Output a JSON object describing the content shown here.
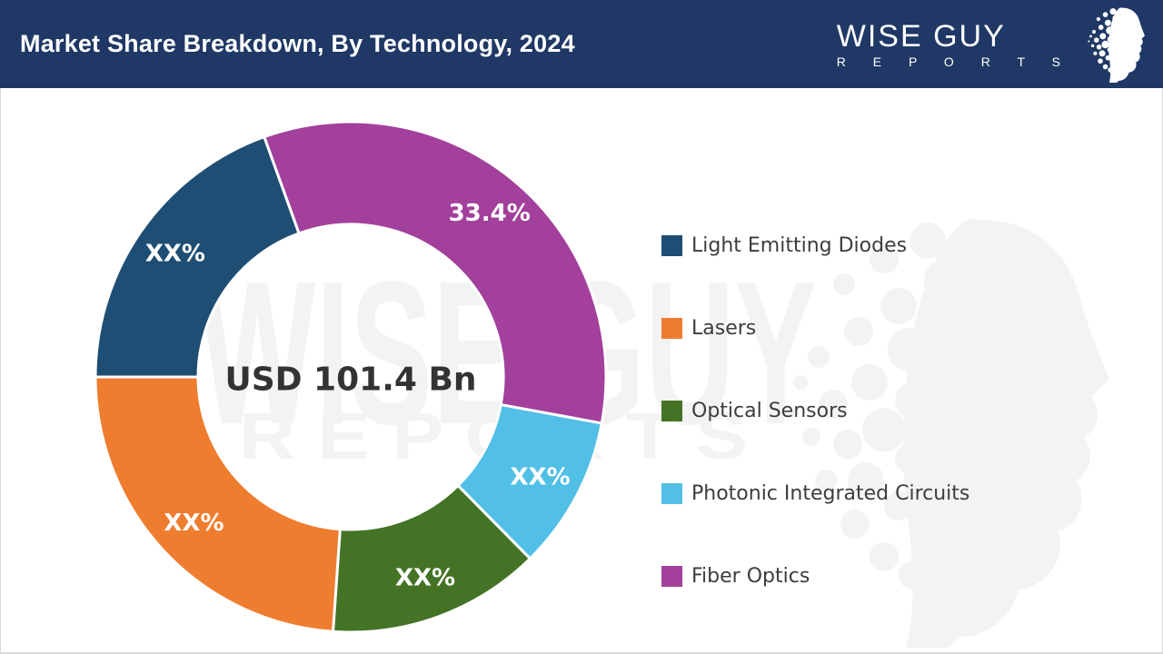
{
  "header": {
    "title": "Market Share Breakdown, By Technology, 2024",
    "logo": {
      "line1": "WISE GUY",
      "line2": "R E P O R T S"
    }
  },
  "watermark": {
    "line1": "WISE GUY",
    "line2": "R E P O R T S"
  },
  "chart_data": {
    "type": "pie",
    "style": "donut",
    "title": "Market Share Breakdown, By Technology, 2024",
    "center_label": "USD 101.4 Bn",
    "legend_position": "right",
    "start_angle_deg": -19.8,
    "draw_order": [
      "Fiber Optics",
      "Photonic Integrated Circuits",
      "Optical Sensors",
      "Lasers",
      "Light Emitting Diodes"
    ],
    "segments": [
      {
        "label": "Light Emitting Diodes",
        "color": "#1F4E74",
        "display_label": "XX%",
        "percent_est": 19.5
      },
      {
        "label": "Lasers",
        "color": "#EF7D2F",
        "display_label": "XX%",
        "percent_est": 23.9
      },
      {
        "label": "Optical Sensors",
        "color": "#447326",
        "display_label": "XX%",
        "percent_est": 13.5
      },
      {
        "label": "Photonic Integrated Circuits",
        "color": "#52BFE6",
        "display_label": "XX%",
        "percent_est": 9.7
      },
      {
        "label": "Fiber Optics",
        "color": "#A2409C",
        "display_label": "33.4%",
        "percent_est": 33.4
      }
    ]
  },
  "colors": {
    "header_background": "#1f3865",
    "watermark": "#f3f3f4",
    "center_text": "#333333",
    "legend_text": "#3d3d3d",
    "slice_separator": "#ffffff"
  }
}
